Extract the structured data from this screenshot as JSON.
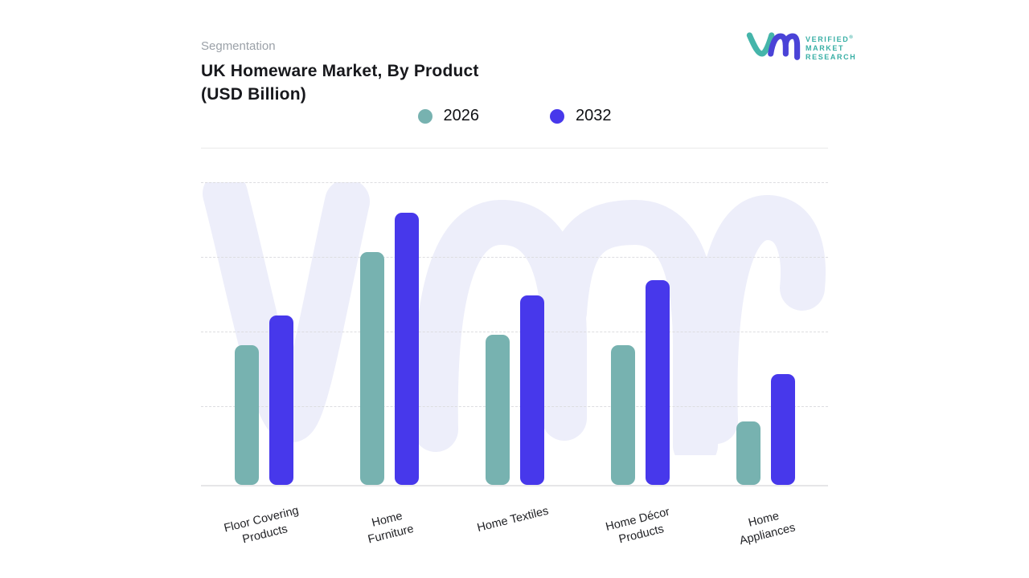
{
  "header": {
    "eyebrow": "Segmentation",
    "title_line1": "UK Homeware Market, By Product",
    "title_line2": "(USD Billion)"
  },
  "logo": {
    "line1": "VERIFIED",
    "reg_mark": "®",
    "line2": "MARKET",
    "line3": "RESEARCH",
    "text_color": "#38afa5",
    "mark_teal": "#45b5aa",
    "mark_indigo": "#4a43d7"
  },
  "legend": {
    "items": [
      {
        "label": "2026",
        "color": "#77b2b0"
      },
      {
        "label": "2032",
        "color": "#4738eb"
      }
    ]
  },
  "colors": {
    "series_2026": "#77b2b0",
    "series_2032": "#4738eb",
    "watermark": "#edeefa",
    "gridline": "#dddde0",
    "title_text": "#17181c",
    "eyebrow_text": "#9ba1a8"
  },
  "chart_data": {
    "type": "bar",
    "title": "UK Homeware Market, By Product (USD Billion)",
    "subtitle_eyebrow": "Segmentation",
    "unit": "USD Billion",
    "categories": [
      "Floor Covering Products",
      "Home Furniture",
      "Home Textiles",
      "Home Décor Products",
      "Home Appliances"
    ],
    "category_label_lines": [
      [
        "Floor Covering",
        "Products"
      ],
      [
        "Home",
        "Furniture"
      ],
      [
        "Home Textiles"
      ],
      [
        "Home Décor",
        "Products"
      ],
      [
        "Home",
        "Appliances"
      ]
    ],
    "series": [
      {
        "name": "2026",
        "color": "#77b2b0",
        "values_grid_units": [
          1.85,
          3.08,
          1.98,
          1.85,
          0.84
        ],
        "values_pct_of_plot_height": [
          46.2,
          76.9,
          49.6,
          46.2,
          21.0
        ]
      },
      {
        "name": "2032",
        "color": "#4738eb",
        "values_grid_units": [
          2.24,
          3.6,
          2.5,
          2.71,
          1.47
        ],
        "values_pct_of_plot_height": [
          56.0,
          89.9,
          62.6,
          67.6,
          36.6
        ]
      }
    ],
    "y_axis": {
      "tick_labels_visible": false,
      "gridlines": "dashed",
      "gridline_intervals": 4
    },
    "x_axis": {
      "label_rotation_deg": -14
    },
    "legend_position": "top-center",
    "watermark": "vmr-logo-watermark"
  }
}
